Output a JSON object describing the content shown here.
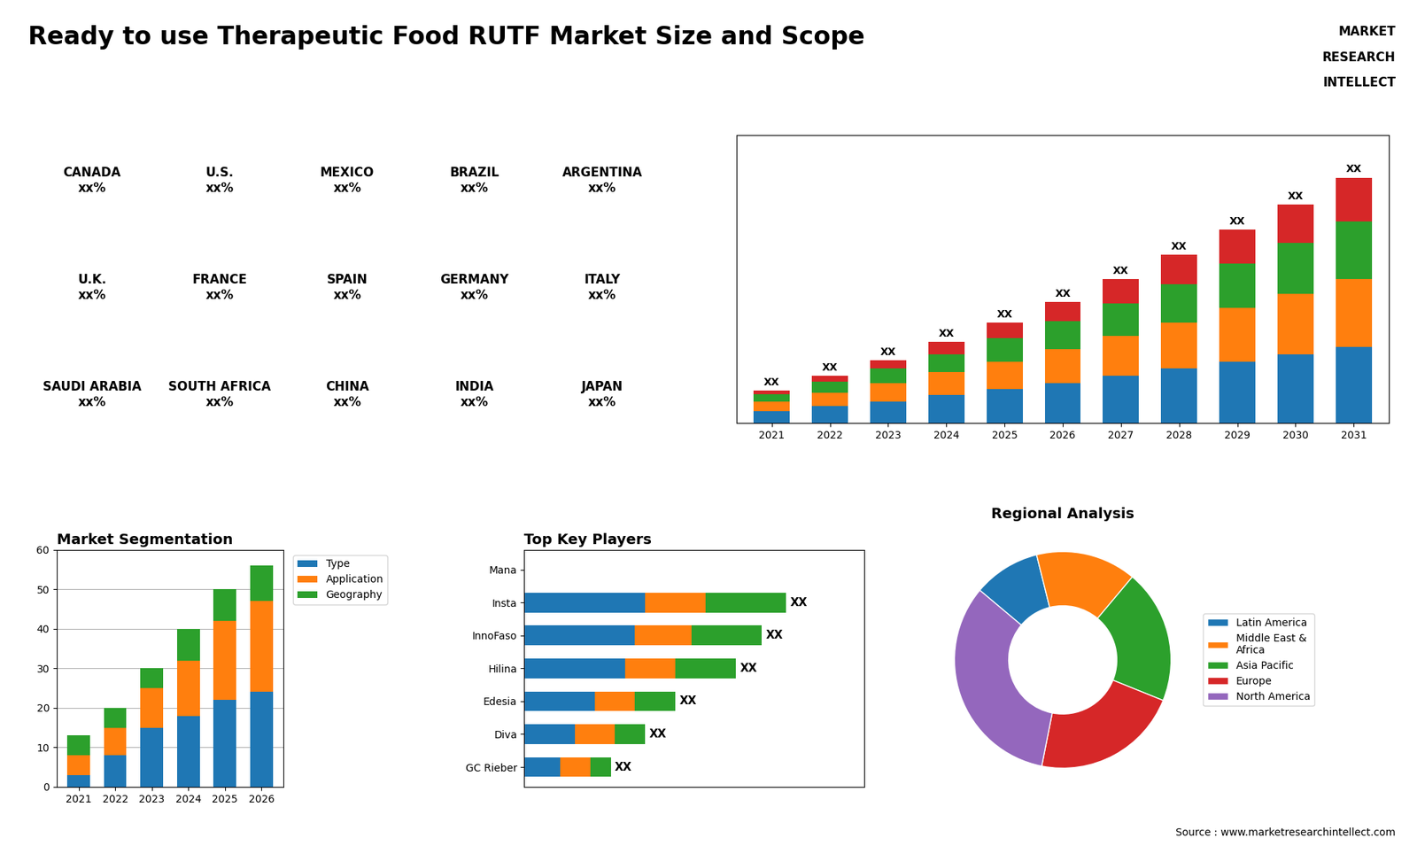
{
  "title": "Ready to use Therapeutic Food RUTF Market Size and Scope",
  "annotations": [
    "MARKET",
    "RESEARCH",
    "INTELLECT",
    "Source : www.marketresearchintellect.com"
  ],
  "chart_data": [
    {
      "type": "map",
      "annotations": [
        "CANADA\nxx%",
        "U.S.\nxx%",
        "MEXICO\nxx%",
        "BRAZIL\nxx%",
        "ARGENTINA\nxx%",
        "U.K.\nxx%",
        "FRANCE\nxx%",
        "SPAIN\nxx%",
        "GERMANY\nxx%",
        "ITALY\nxx%",
        "SAUDI ARABIA\nxx%",
        "SOUTH AFRICA\nxx%",
        "CHINA\nxx%",
        "INDIA\nxx%",
        "JAPAN\nxx%"
      ]
    },
    {
      "type": "bar",
      "stacked": true,
      "categories": [
        "2021",
        "2022",
        "2023",
        "2024",
        "2025",
        "2026",
        "2027",
        "2028",
        "2029",
        "2030",
        "2031"
      ],
      "series": [
        {
          "values": [
            1.0,
            1.4,
            1.8,
            2.3,
            2.8,
            3.3,
            3.9,
            4.5,
            5.1,
            5.7,
            6.3
          ]
        },
        {
          "values": [
            0.8,
            1.1,
            1.5,
            1.9,
            2.3,
            2.8,
            3.3,
            3.8,
            4.4,
            5.0,
            5.6
          ]
        },
        {
          "values": [
            0.6,
            0.9,
            1.2,
            1.5,
            1.9,
            2.3,
            2.7,
            3.2,
            3.7,
            4.2,
            4.8
          ]
        },
        {
          "values": [
            0.3,
            0.5,
            0.7,
            1.0,
            1.3,
            1.6,
            2.0,
            2.4,
            2.8,
            3.2,
            3.6
          ]
        }
      ],
      "ylim": [
        0,
        23.8
      ],
      "yticks": [],
      "tick_labels": "x",
      "annotations": [
        {
          "text": "XX",
          "x": "2021"
        },
        {
          "text": "XX",
          "x": "2022"
        },
        {
          "text": "XX",
          "x": "2023"
        },
        {
          "text": "XX",
          "x": "2024"
        },
        {
          "text": "XX",
          "x": "2025"
        },
        {
          "text": "XX",
          "x": "2026"
        },
        {
          "text": "XX",
          "x": "2027"
        },
        {
          "text": "XX",
          "x": "2028"
        },
        {
          "text": "XX",
          "x": "2029"
        },
        {
          "text": "XX",
          "x": "2030"
        },
        {
          "text": "XX",
          "x": "2031"
        }
      ]
    },
    {
      "type": "bar",
      "stacked": true,
      "title": "Market Segmentation",
      "categories": [
        "2021",
        "2022",
        "2023",
        "2024",
        "2025",
        "2026"
      ],
      "series": [
        {
          "name": "Type",
          "values": [
            3,
            8,
            15,
            18,
            22,
            24
          ]
        },
        {
          "name": "Application",
          "values": [
            5,
            7,
            10,
            14,
            20,
            23
          ]
        },
        {
          "name": "Geography",
          "values": [
            5,
            5,
            5,
            8,
            8,
            9
          ]
        }
      ],
      "ylim": [
        0,
        60
      ],
      "yticks": [
        0,
        10,
        20,
        30,
        40,
        50,
        60
      ],
      "grid": true,
      "legend": "upper left"
    },
    {
      "type": "bar",
      "orientation": "horizontal",
      "stacked": true,
      "title": "Top Key Players",
      "categories": [
        "Mana",
        "Insta",
        "InnoFaso",
        "Hilina",
        "Edesia",
        "Diva",
        "GC Rieber"
      ],
      "series": [
        {
          "values": [
            0,
            6.0,
            5.5,
            5.0,
            3.5,
            2.5,
            1.8
          ]
        },
        {
          "values": [
            0,
            3.0,
            2.8,
            2.5,
            2.0,
            2.0,
            1.5
          ]
        },
        {
          "values": [
            0,
            4.0,
            3.5,
            3.0,
            2.0,
            1.5,
            1.0
          ]
        }
      ],
      "xlim": [
        0,
        16.9
      ],
      "xticks": [],
      "tick_labels": "y",
      "annotations": [
        {
          "text": "XX",
          "y": "Insta"
        },
        {
          "text": "XX",
          "y": "InnoFaso"
        },
        {
          "text": "XX",
          "y": "Hilina"
        },
        {
          "text": "XX",
          "y": "Edesia"
        },
        {
          "text": "XX",
          "y": "Diva"
        },
        {
          "text": "XX",
          "y": "GC Rieber"
        }
      ]
    },
    {
      "type": "pie",
      "title": "Regional Analysis",
      "categories": [
        "Latin America",
        "Middle East &\nAfrica",
        "Asia Pacific",
        "Europe",
        "North America"
      ],
      "values": [
        10,
        15,
        20,
        22,
        33
      ],
      "legend": "center left"
    }
  ]
}
